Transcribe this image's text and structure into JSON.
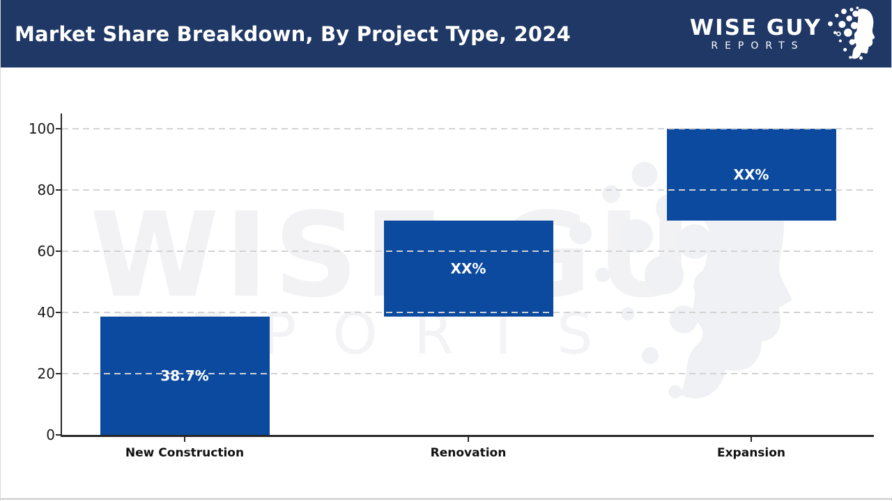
{
  "header": {
    "title": "Market Share Breakdown, By Project Type, 2024",
    "bg_color": "#203866",
    "logo": {
      "line1": "WISE GUY",
      "line2": "REPORTS"
    }
  },
  "watermark": {
    "line1": "WISE GUY",
    "line2": "REPORTS"
  },
  "chart_data": {
    "type": "bar",
    "subtype": "waterfall",
    "title": "Market Share Breakdown, By Project Type, 2024",
    "categories": [
      "New Construction",
      "Renovation",
      "Expansion"
    ],
    "segments": [
      {
        "category": "New Construction",
        "start": 0,
        "end": 38.7,
        "label": "38.7%"
      },
      {
        "category": "Renovation",
        "start": 38.7,
        "end": 70,
        "label": "XX%"
      },
      {
        "category": "Expansion",
        "start": 70,
        "end": 100,
        "label": "XX%"
      }
    ],
    "yticks": [
      0,
      20,
      40,
      60,
      80,
      100
    ],
    "ylim": [
      0,
      105
    ],
    "xlabel": "",
    "ylabel": "",
    "grid": "horizontal-dashed",
    "legend": "none",
    "bar_color": "#0b4a9e",
    "label_color": "#ffffff"
  }
}
